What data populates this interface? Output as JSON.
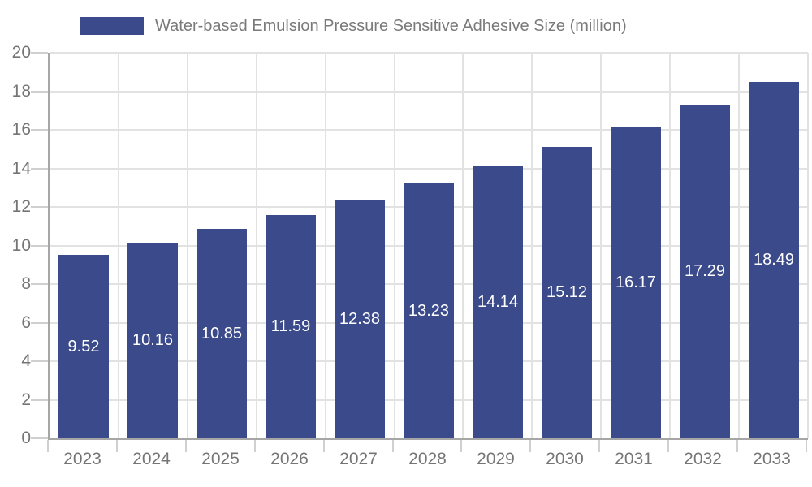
{
  "chart_data": {
    "type": "bar",
    "title": "Water-based Emulsion Pressure Sensitive Adhesive Size (million)",
    "categories": [
      "2023",
      "2024",
      "2025",
      "2026",
      "2027",
      "2028",
      "2029",
      "2030",
      "2031",
      "2032",
      "2033"
    ],
    "values": [
      9.52,
      10.16,
      10.85,
      11.59,
      12.38,
      13.23,
      14.14,
      15.12,
      16.17,
      17.29,
      18.49
    ],
    "value_labels": [
      "9.52",
      "10.16",
      "10.85",
      "11.59",
      "12.38",
      "13.23",
      "14.14",
      "15.12",
      "16.17",
      "17.29",
      "18.49"
    ],
    "xlabel": "",
    "ylabel": "",
    "ylim": [
      0,
      20
    ],
    "yticks": [
      0,
      2,
      4,
      6,
      8,
      10,
      12,
      14,
      16,
      18,
      20
    ],
    "grid": true,
    "legend_position": "top",
    "colors": {
      "bar": "#3a4a8a",
      "value_label": "#ffffff",
      "tick_label": "#757575",
      "gridline": "#e2e2e2",
      "axis": "#a6a6a6",
      "legend_text": "#7a7a7a"
    }
  }
}
